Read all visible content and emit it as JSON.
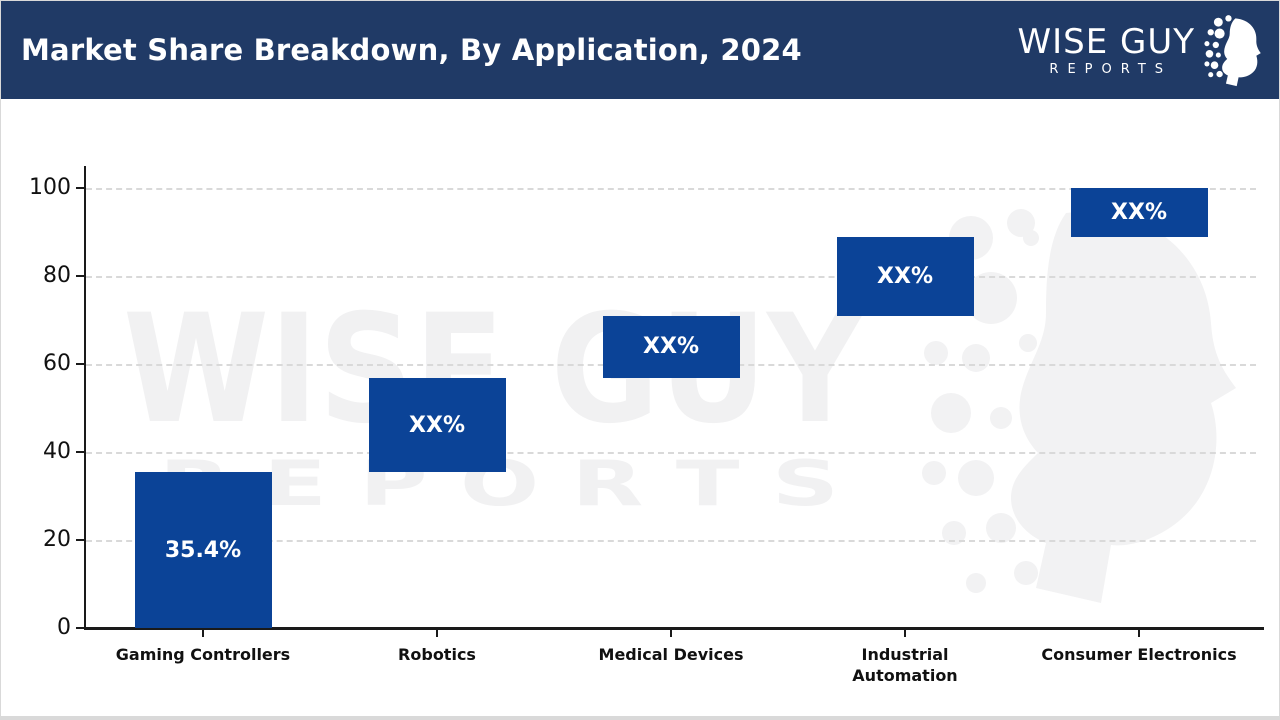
{
  "header": {
    "title": "Market Share Breakdown, By Application, 2024",
    "logo": {
      "line1": "WISE GUY",
      "line2": "REPORTS"
    }
  },
  "watermark": {
    "line1": "WISE GUY",
    "line2": "R E P O R T S"
  },
  "chart_data": {
    "type": "waterfall",
    "title": "Market Share Breakdown, By Application, 2024",
    "categories": [
      "Gaming Controllers",
      "Robotics",
      "Medical Devices",
      "Industrial Automation",
      "Consumer Electronics"
    ],
    "segments": [
      {
        "category": "Gaming Controllers",
        "label": "35.4%",
        "start": 0,
        "end": 35.4
      },
      {
        "category": "Robotics",
        "label": "XX%",
        "start": 35.4,
        "end": 56.8
      },
      {
        "category": "Medical Devices",
        "label": "XX%",
        "start": 56.8,
        "end": 71.0
      },
      {
        "category": "Industrial Automation",
        "label": "XX%",
        "start": 71.0,
        "end": 88.9
      },
      {
        "category": "Consumer Electronics",
        "label": "XX%",
        "start": 88.9,
        "end": 100
      }
    ],
    "ylim": [
      0,
      100
    ],
    "yticks": [
      0,
      20,
      40,
      60,
      80,
      100
    ],
    "xlabel": "",
    "ylabel": "",
    "grid": "horizontal-dashed",
    "legend": "none"
  },
  "colors": {
    "header_bg": "#203a66",
    "bar": "#0b4397",
    "bar_label": "#ffffff",
    "grid": "#d9d9d9",
    "axis": "#1a1a1a",
    "watermark": "#f1f1f2"
  }
}
